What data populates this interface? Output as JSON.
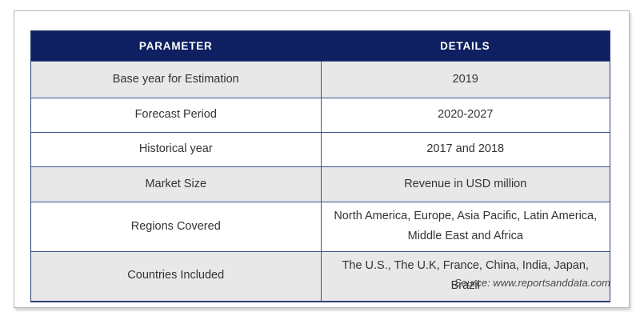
{
  "table": {
    "headers": {
      "parameter": "PARAMETER",
      "details": "DETAILS"
    },
    "rows": [
      {
        "parameter": "Base year for Estimation",
        "details": "2019"
      },
      {
        "parameter": "Forecast Period",
        "details": "2020-2027"
      },
      {
        "parameter": "Historical year",
        "details": "2017 and 2018"
      },
      {
        "parameter": "Market Size",
        "details": "Revenue in USD million"
      },
      {
        "parameter": "Regions Covered",
        "details": "North America, Europe, Asia Pacific, Latin America, Middle East and Africa"
      },
      {
        "parameter": "Countries Included",
        "details": "The U.S., The  U.K, France, China, India, Japan, Brazil"
      }
    ]
  },
  "source": {
    "label": "Source: www.reportsanddata.com"
  },
  "colors": {
    "header_bg": "#0e2061",
    "shaded_row_bg": "#e8e8e8",
    "grid_border": "#3d548d",
    "outer_border": "#2c3e74",
    "text": "#333333",
    "card_border": "#b8b8b8"
  },
  "chart_data": {
    "type": "table",
    "title": "",
    "columns": [
      "PARAMETER",
      "DETAILS"
    ],
    "rows": [
      [
        "Base year for Estimation",
        "2019"
      ],
      [
        "Forecast Period",
        "2020-2027"
      ],
      [
        "Historical year",
        "2017 and 2018"
      ],
      [
        "Market Size",
        "Revenue in USD million"
      ],
      [
        "Regions Covered",
        "North America, Europe, Asia Pacific, Latin America, Middle East and Africa"
      ],
      [
        "Countries Included",
        "The U.S., The  U.K, France, China, India, Japan, Brazil"
      ]
    ]
  }
}
